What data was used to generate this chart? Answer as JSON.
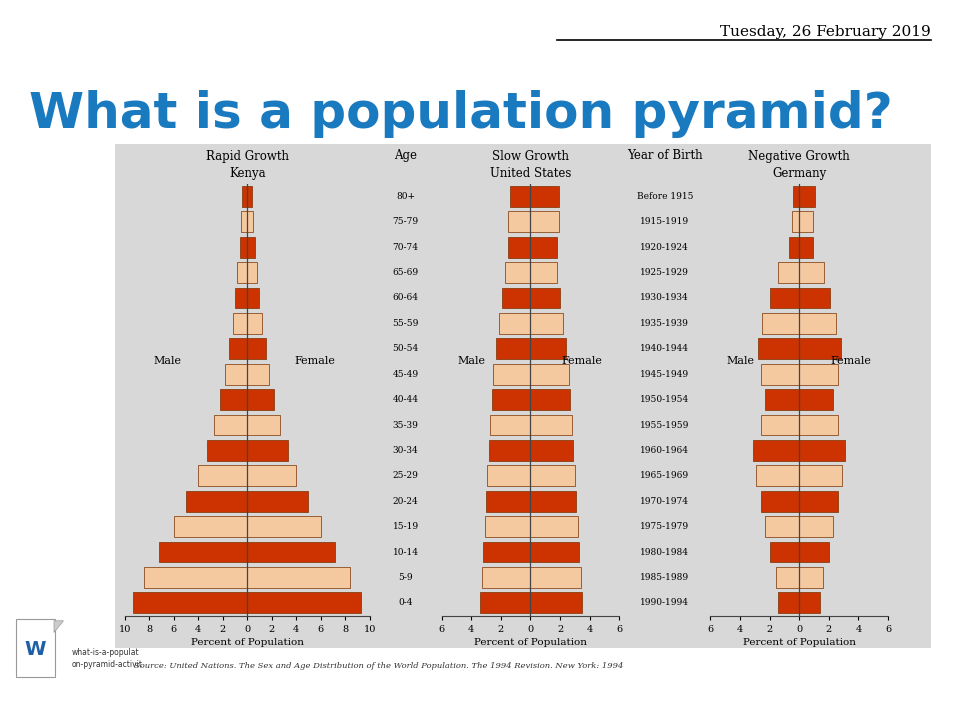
{
  "title": "What is a population pyramid?",
  "date_text": "Tuesday, 26 February 2019",
  "title_color": "#1a7abf",
  "title_fontsize": 36,
  "bg_color": "#ffffff",
  "chart_bg": "#d8d8d8",
  "age_labels": [
    "80+",
    "75-79",
    "70-74",
    "65-69",
    "60-64",
    "55-59",
    "50-54",
    "45-49",
    "40-44",
    "35-39",
    "30-34",
    "25-29",
    "20-24",
    "15-19",
    "10-14",
    "5-9",
    "0-4"
  ],
  "year_labels": [
    "Before 1915",
    "1915-1919",
    "1920-1924",
    "1925-1929",
    "1930-1934",
    "1935-1939",
    "1940-1944",
    "1945-1949",
    "1950-1954",
    "1955-1959",
    "1960-1964",
    "1965-1969",
    "1970-1974",
    "1975-1979",
    "1980-1984",
    "1985-1989",
    "1990-1994"
  ],
  "kenya_title": "Rapid Growth\nKenya",
  "us_title": "Slow Growth\nUnited States",
  "germany_title": "Negative Growth\nGermany",
  "kenya_male": [
    0.4,
    0.5,
    0.6,
    0.8,
    1.0,
    1.2,
    1.5,
    1.8,
    2.2,
    2.7,
    3.3,
    4.0,
    5.0,
    6.0,
    7.2,
    8.4,
    9.3
  ],
  "kenya_female": [
    0.4,
    0.5,
    0.6,
    0.8,
    1.0,
    1.2,
    1.5,
    1.8,
    2.2,
    2.7,
    3.3,
    4.0,
    5.0,
    6.0,
    7.2,
    8.4,
    9.3
  ],
  "us_male": [
    1.4,
    1.5,
    1.5,
    1.7,
    1.9,
    2.1,
    2.3,
    2.5,
    2.6,
    2.7,
    2.8,
    2.9,
    3.0,
    3.1,
    3.2,
    3.3,
    3.4
  ],
  "us_female": [
    1.9,
    1.9,
    1.8,
    1.8,
    2.0,
    2.2,
    2.4,
    2.6,
    2.7,
    2.8,
    2.9,
    3.0,
    3.1,
    3.2,
    3.3,
    3.4,
    3.5
  ],
  "germany_male": [
    0.4,
    0.5,
    0.7,
    1.4,
    2.0,
    2.5,
    2.8,
    2.6,
    2.3,
    2.6,
    3.1,
    2.9,
    2.6,
    2.3,
    2.0,
    1.6,
    1.4
  ],
  "germany_female": [
    1.1,
    0.9,
    0.9,
    1.7,
    2.1,
    2.5,
    2.8,
    2.6,
    2.3,
    2.6,
    3.1,
    2.9,
    2.6,
    2.3,
    2.0,
    1.6,
    1.4
  ],
  "dark_orange": "#cc3300",
  "light_peach": "#f5c9a0",
  "source_text": "Source: United Nations. The Sex and Age Distribution of the World Population. The 1994 Revision. New York: 1994"
}
